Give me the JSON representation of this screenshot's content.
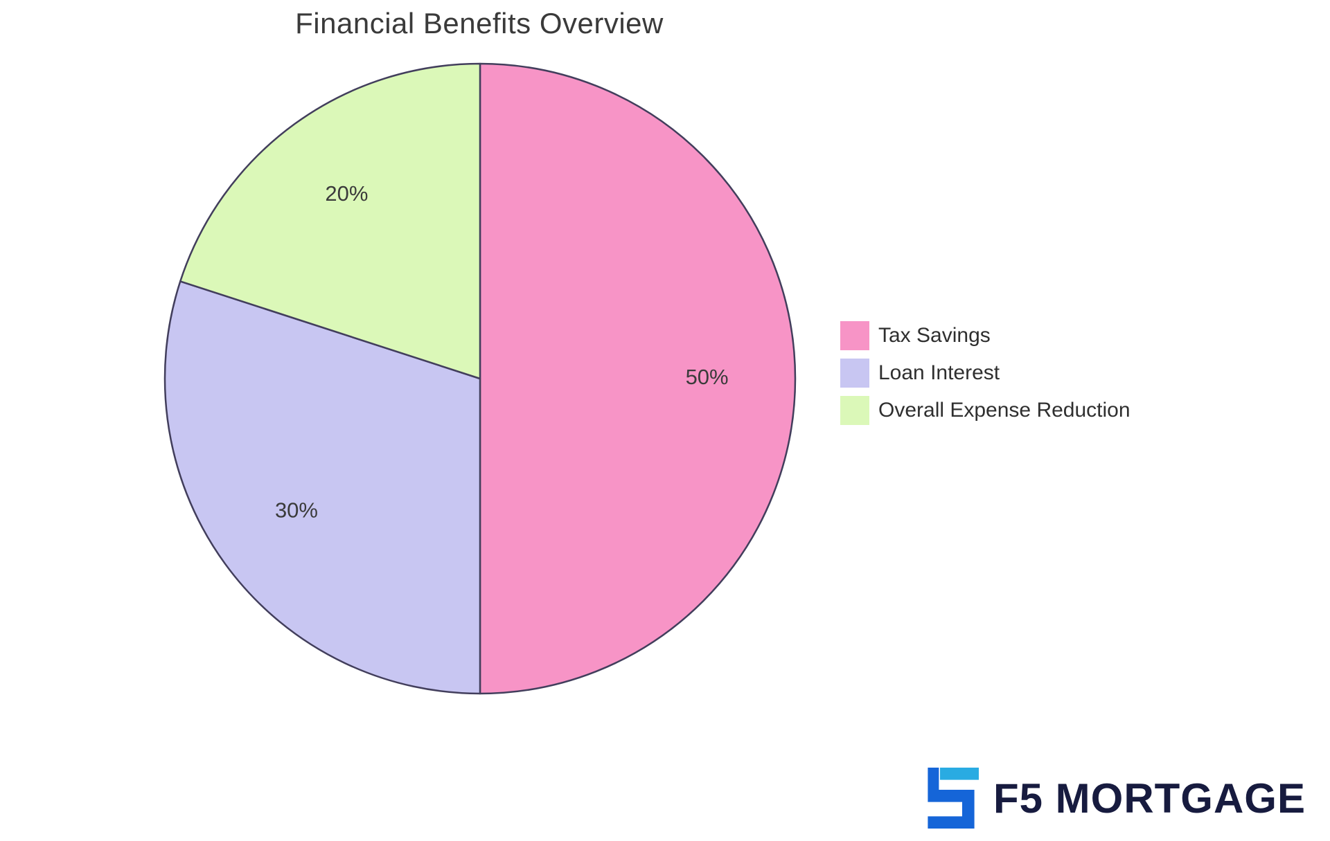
{
  "chart_data": {
    "type": "pie",
    "title": "Financial Benefits Overview",
    "start_angle": "top",
    "direction": "clockwise",
    "legend_position": "right",
    "stroke_color": "#423e5c",
    "label_color": "#3b3b3b",
    "slices": [
      {
        "label": "Tax Savings",
        "value": 50,
        "pct_label": "50%",
        "color": "#f794c6"
      },
      {
        "label": "Loan Interest",
        "value": 30,
        "pct_label": "30%",
        "color": "#c8c6f2"
      },
      {
        "label": "Overall Expense Reduction",
        "value": 20,
        "pct_label": "20%",
        "color": "#dbf8b8"
      }
    ]
  },
  "branding": {
    "logo_text": "F5 MORTGAGE",
    "logo_colors": {
      "light_blue": "#29abe2",
      "dark_blue": "#1565d8",
      "text": "#171b3f"
    }
  }
}
